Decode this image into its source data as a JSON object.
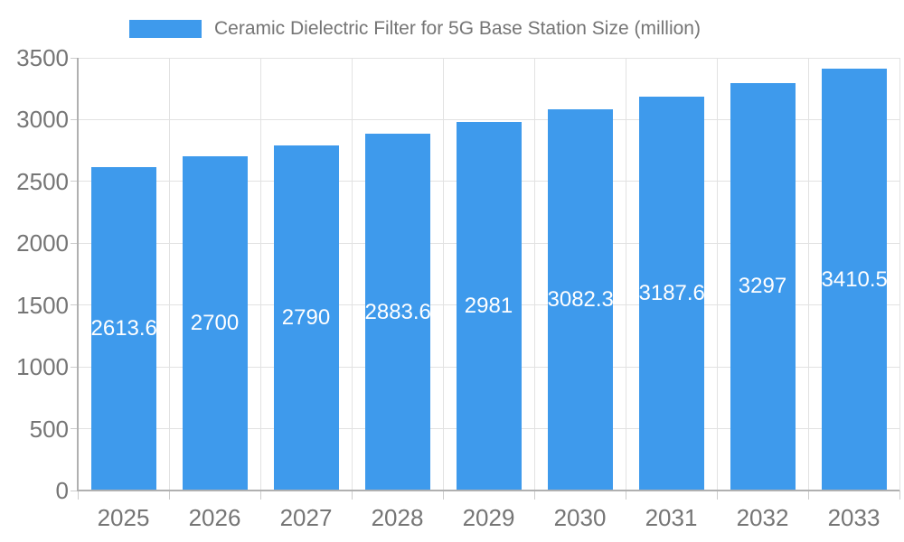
{
  "legend": {
    "label": "Ceramic Dielectric Filter for 5G Base Station Size (million)"
  },
  "colors": {
    "bar": "#3E9AEC",
    "axis_text": "#757575",
    "bar_label_text": "#ffffff",
    "grid_line": "#e2e2e2",
    "axis_line": "#b0b0b0",
    "tick_line": "#cccccc",
    "background": "#ffffff"
  },
  "chart_data": {
    "type": "bar",
    "title": "Ceramic Dielectric Filter for 5G Base Station Size (million)",
    "series": [
      {
        "name": "Ceramic Dielectric Filter for 5G Base Station Size (million)",
        "values": [
          2613.6,
          2700,
          2790,
          2883.6,
          2981,
          3082.3,
          3187.6,
          3297,
          3410.5
        ]
      }
    ],
    "categories": [
      "2025",
      "2026",
      "2027",
      "2028",
      "2029",
      "2030",
      "2031",
      "2032",
      "2033"
    ],
    "value_labels": [
      "2613.6",
      "2700",
      "2790",
      "2883.6",
      "2981",
      "3082.3",
      "3187.6",
      "3297",
      "3410.5"
    ],
    "xlabel": "",
    "ylabel": "",
    "ylim": [
      0,
      3500
    ],
    "ytick_step": 500,
    "yticks": [
      "0",
      "500",
      "1000",
      "1500",
      "2000",
      "2500",
      "3000",
      "3500"
    ],
    "grid": true,
    "legend_position": "top"
  }
}
